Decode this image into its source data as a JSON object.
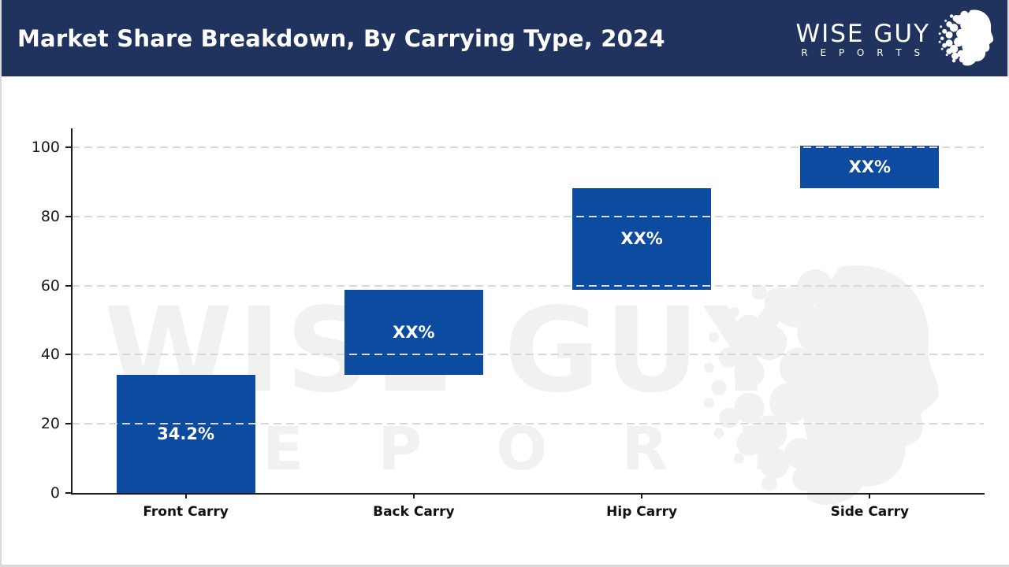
{
  "header": {
    "title": "Market Share Breakdown, By Carrying Type, 2024",
    "bg_color": "#20335e",
    "logo": {
      "wordmark": "WISE GUY",
      "subtitle": "R E P O R T S",
      "icon": "head-dots-icon",
      "color": "#ffffff"
    }
  },
  "watermark": {
    "line1": "WISE GUY",
    "line2": "R E P O R T S",
    "icon": "head-dots-icon",
    "color": "#f1f1f1"
  },
  "chart_data": {
    "type": "bar",
    "subtype": "waterfall",
    "title": "Market Share Breakdown, By Carrying Type, 2024",
    "categories": [
      "Front Carry",
      "Back Carry",
      "Hip Carry",
      "Side Carry"
    ],
    "series": [
      {
        "name": "Market share",
        "segments": [
          {
            "category": "Front Carry",
            "start": 0,
            "end": 34.2,
            "label": "34.2%"
          },
          {
            "category": "Back Carry",
            "start": 34.2,
            "end": 58.8,
            "label": "XX%"
          },
          {
            "category": "Hip Carry",
            "start": 58.8,
            "end": 88.2,
            "label": "XX%"
          },
          {
            "category": "Side Carry",
            "start": 88.2,
            "end": 100.5,
            "label": "XX%"
          }
        ]
      }
    ],
    "xlabel": "",
    "ylabel": "",
    "ylim": [
      0,
      100
    ],
    "yticks": [
      0,
      20,
      40,
      60,
      80,
      100
    ],
    "grid": "horizontal-dashed",
    "legend": "none",
    "bar_color": "#0c4ba0",
    "bar_label_color": "#ffffff",
    "grid_color": "#d8d8d8"
  }
}
